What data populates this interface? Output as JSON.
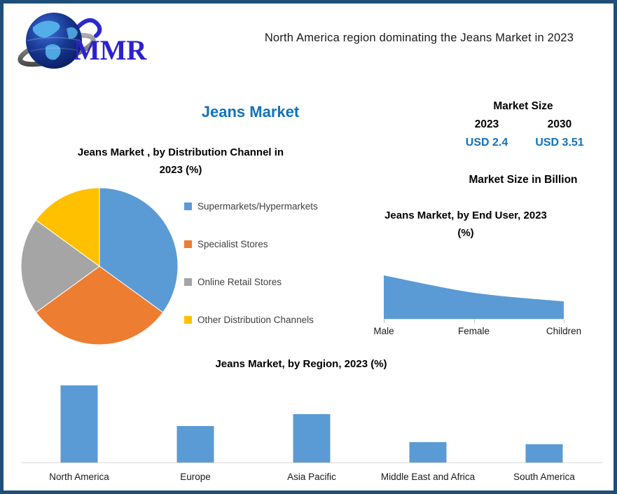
{
  "page": {
    "border_color": "#1F4E79",
    "background": "#FFFFFF"
  },
  "logo": {
    "text": "MMR",
    "brand_blue": "#2B21CE"
  },
  "header": {
    "title": "North America region dominating the Jeans Market in 2023"
  },
  "main_heading": "Jeans Market",
  "market_size": {
    "title": "Market Size",
    "years": [
      "2023",
      "2030"
    ],
    "values": [
      "USD 2.4",
      "USD 3.51"
    ],
    "unit_label": "Market Size in Billion",
    "value_color": "#1272BB"
  },
  "chart_data": [
    {
      "type": "pie",
      "title": "Jeans Market , by Distribution Channel in 2023 (%)",
      "title_lines": [
        "Jeans Market , by Distribution Channel in",
        "2023 (%)"
      ],
      "labels": [
        "Supermarkets/Hypermarkets",
        "Specialist Stores",
        "Online Retail Stores",
        "Other Distribution Channels"
      ],
      "values": [
        35,
        30,
        20,
        15
      ],
      "colors": [
        "#5B9BD5",
        "#ED7D31",
        "#A5A5A5",
        "#FFC000"
      ],
      "start_angle_deg": 0,
      "direction": "clockwise",
      "legend_position": "right"
    },
    {
      "type": "area",
      "title": "Jeans Market, by End User, 2023 (%)",
      "title_lines": [
        "Jeans Market, by End User, 2023",
        "(%)"
      ],
      "categories": [
        "Male",
        "Female",
        "Children"
      ],
      "values": [
        50,
        30,
        20
      ],
      "color": "#5B9BD5",
      "axis_color": "#D9D9D9",
      "grid": false,
      "legend": false
    },
    {
      "type": "bar",
      "title": "Jeans Market, by Region, 2023 (%)",
      "categories": [
        "North America",
        "Europe",
        "Asia Pacific",
        "Middle East and Africa",
        "South America"
      ],
      "values": [
        38,
        18,
        24,
        10,
        9
      ],
      "color": "#5B9BD5",
      "axis_color": "#D9D9D9",
      "grid": false,
      "legend": false
    }
  ]
}
